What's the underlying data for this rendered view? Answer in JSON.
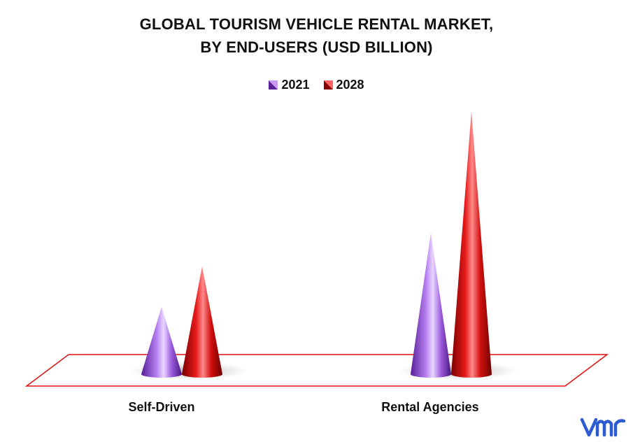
{
  "title_line1": "GLOBAL TOURISM VEHICLE RENTAL MARKET,",
  "title_line2": "BY END-USERS (USD BILLION)",
  "colors": {
    "series_2021": "#8e44d4",
    "series_2028": "#e01010",
    "floor_border": "#e01010"
  },
  "icons": {
    "brand_logo": "vmr-logo-icon"
  },
  "chart_data": {
    "type": "bar",
    "bar_shape": "cone",
    "categories": [
      "Self-Driven",
      "Rental Agencies"
    ],
    "series": [
      {
        "name": "2021",
        "values": [
          1.0,
          2.1
        ]
      },
      {
        "name": "2028",
        "values": [
          1.6,
          3.9
        ]
      }
    ],
    "ylim": [
      0,
      4
    ],
    "legend_position": "top-center",
    "grid": false,
    "axis_lines": false
  }
}
